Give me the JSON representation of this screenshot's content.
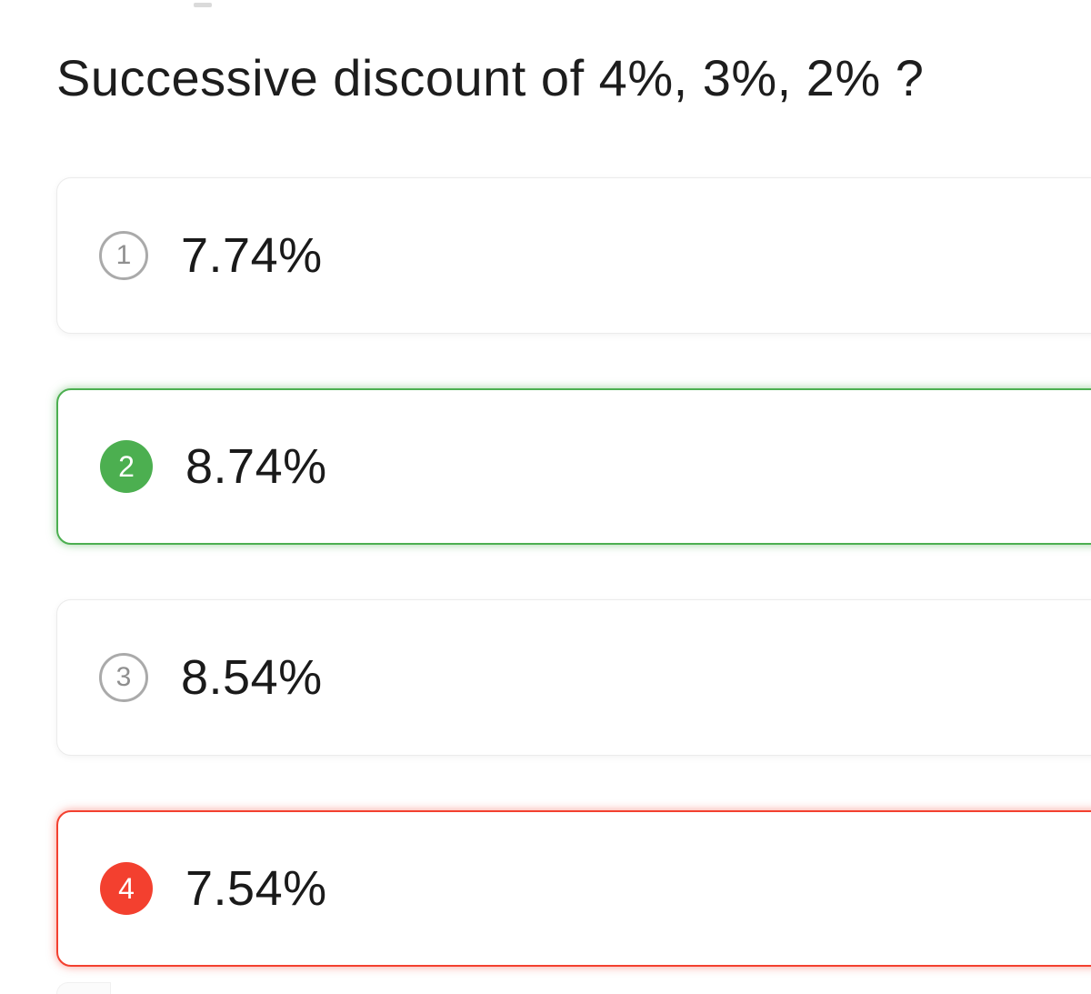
{
  "question": {
    "title": "Successive discount of 4%, 3%, 2% ?"
  },
  "options": [
    {
      "number": "1",
      "label": "7.74%",
      "state": "default"
    },
    {
      "number": "2",
      "label": "8.74%",
      "state": "correct"
    },
    {
      "number": "3",
      "label": "8.54%",
      "state": "default"
    },
    {
      "number": "4",
      "label": "7.54%",
      "state": "incorrect"
    }
  ],
  "colors": {
    "correct_green": "#4caf50",
    "incorrect_red": "#f3402f",
    "neutral_ring_gray": "#aaaaaa",
    "neutral_border_gray": "#ebebeb",
    "text_dark": "#1a1a1a"
  }
}
